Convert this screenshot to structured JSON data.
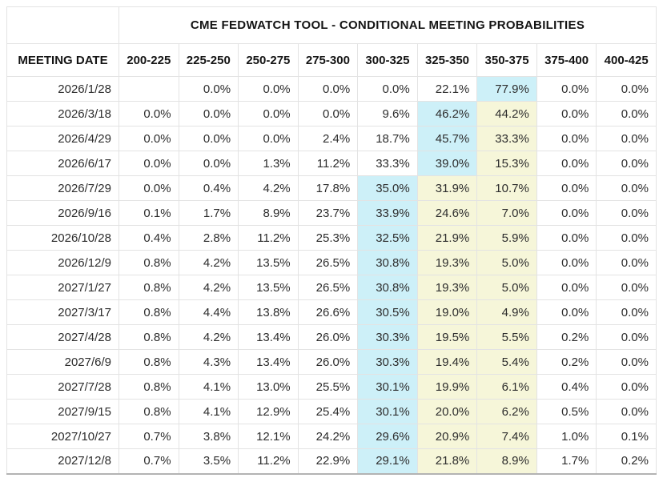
{
  "table": {
    "title": "CME FEDWATCH TOOL - CONDITIONAL MEETING PROBABILITIES",
    "headers": [
      "MEETING DATE",
      "200-225",
      "225-250",
      "250-275",
      "275-300",
      "300-325",
      "325-350",
      "350-375",
      "375-400",
      "400-425"
    ],
    "rows": [
      {
        "date": "2026/1/28",
        "values": [
          "",
          "0.0%",
          "0.0%",
          "0.0%",
          "0.0%",
          "22.1%",
          "77.9%",
          "0.0%",
          "0.0%"
        ],
        "styles": [
          "",
          "",
          "",
          "",
          "",
          "",
          "blue",
          "",
          ""
        ]
      },
      {
        "date": "2026/3/18",
        "values": [
          "0.0%",
          "0.0%",
          "0.0%",
          "0.0%",
          "9.6%",
          "46.2%",
          "44.2%",
          "0.0%",
          "0.0%"
        ],
        "styles": [
          "",
          "",
          "",
          "",
          "",
          "blue",
          "yellow",
          "",
          ""
        ]
      },
      {
        "date": "2026/4/29",
        "values": [
          "0.0%",
          "0.0%",
          "0.0%",
          "2.4%",
          "18.7%",
          "45.7%",
          "33.3%",
          "0.0%",
          "0.0%"
        ],
        "styles": [
          "",
          "",
          "",
          "",
          "",
          "blue",
          "yellow",
          "",
          ""
        ]
      },
      {
        "date": "2026/6/17",
        "values": [
          "0.0%",
          "0.0%",
          "1.3%",
          "11.2%",
          "33.3%",
          "39.0%",
          "15.3%",
          "0.0%",
          "0.0%"
        ],
        "styles": [
          "",
          "",
          "",
          "",
          "",
          "blue",
          "yellow",
          "",
          ""
        ]
      },
      {
        "date": "2026/7/29",
        "values": [
          "0.0%",
          "0.4%",
          "4.2%",
          "17.8%",
          "35.0%",
          "31.9%",
          "10.7%",
          "0.0%",
          "0.0%"
        ],
        "styles": [
          "",
          "",
          "",
          "",
          "blue",
          "yellow",
          "yellow",
          "",
          ""
        ]
      },
      {
        "date": "2026/9/16",
        "values": [
          "0.1%",
          "1.7%",
          "8.9%",
          "23.7%",
          "33.9%",
          "24.6%",
          "7.0%",
          "0.0%",
          "0.0%"
        ],
        "styles": [
          "",
          "",
          "",
          "",
          "blue",
          "yellow",
          "yellow",
          "",
          ""
        ]
      },
      {
        "date": "2026/10/28",
        "values": [
          "0.4%",
          "2.8%",
          "11.2%",
          "25.3%",
          "32.5%",
          "21.9%",
          "5.9%",
          "0.0%",
          "0.0%"
        ],
        "styles": [
          "",
          "",
          "",
          "",
          "blue",
          "yellow",
          "yellow",
          "",
          ""
        ]
      },
      {
        "date": "2026/12/9",
        "values": [
          "0.8%",
          "4.2%",
          "13.5%",
          "26.5%",
          "30.8%",
          "19.3%",
          "5.0%",
          "0.0%",
          "0.0%"
        ],
        "styles": [
          "",
          "",
          "",
          "",
          "blue",
          "yellow",
          "yellow",
          "",
          ""
        ]
      },
      {
        "date": "2027/1/27",
        "values": [
          "0.8%",
          "4.2%",
          "13.5%",
          "26.5%",
          "30.8%",
          "19.3%",
          "5.0%",
          "0.0%",
          "0.0%"
        ],
        "styles": [
          "",
          "",
          "",
          "",
          "blue",
          "yellow",
          "yellow",
          "",
          ""
        ]
      },
      {
        "date": "2027/3/17",
        "values": [
          "0.8%",
          "4.4%",
          "13.8%",
          "26.6%",
          "30.5%",
          "19.0%",
          "4.9%",
          "0.0%",
          "0.0%"
        ],
        "styles": [
          "",
          "",
          "",
          "",
          "blue",
          "yellow",
          "yellow",
          "",
          ""
        ]
      },
      {
        "date": "2027/4/28",
        "values": [
          "0.8%",
          "4.2%",
          "13.4%",
          "26.0%",
          "30.3%",
          "19.5%",
          "5.5%",
          "0.2%",
          "0.0%"
        ],
        "styles": [
          "",
          "",
          "",
          "",
          "blue",
          "yellow",
          "yellow",
          "",
          ""
        ]
      },
      {
        "date": "2027/6/9",
        "values": [
          "0.8%",
          "4.3%",
          "13.4%",
          "26.0%",
          "30.3%",
          "19.4%",
          "5.4%",
          "0.2%",
          "0.0%"
        ],
        "styles": [
          "",
          "",
          "",
          "",
          "blue",
          "yellow",
          "yellow",
          "",
          ""
        ]
      },
      {
        "date": "2027/7/28",
        "values": [
          "0.8%",
          "4.1%",
          "13.0%",
          "25.5%",
          "30.1%",
          "19.9%",
          "6.1%",
          "0.4%",
          "0.0%"
        ],
        "styles": [
          "",
          "",
          "",
          "",
          "blue",
          "yellow",
          "yellow",
          "",
          ""
        ]
      },
      {
        "date": "2027/9/15",
        "values": [
          "0.8%",
          "4.1%",
          "12.9%",
          "25.4%",
          "30.1%",
          "20.0%",
          "6.2%",
          "0.5%",
          "0.0%"
        ],
        "styles": [
          "",
          "",
          "",
          "",
          "blue",
          "yellow",
          "yellow",
          "",
          ""
        ]
      },
      {
        "date": "2027/10/27",
        "values": [
          "0.7%",
          "3.8%",
          "12.1%",
          "24.2%",
          "29.6%",
          "20.9%",
          "7.4%",
          "1.0%",
          "0.1%"
        ],
        "styles": [
          "",
          "",
          "",
          "",
          "blue",
          "yellow",
          "yellow",
          "",
          ""
        ]
      },
      {
        "date": "2027/12/8",
        "values": [
          "0.7%",
          "3.5%",
          "11.2%",
          "22.9%",
          "29.1%",
          "21.8%",
          "8.9%",
          "1.7%",
          "0.2%"
        ],
        "styles": [
          "",
          "",
          "",
          "",
          "blue",
          "yellow",
          "yellow",
          "",
          ""
        ]
      }
    ]
  },
  "colors": {
    "blue": "#cdf0f8",
    "yellow": "#f6f6d9",
    "grid": "#e3e3e3",
    "header_text": "#141414",
    "body_text": "#2d2d2d"
  },
  "chart_data": {
    "type": "table",
    "title": "CME FEDWATCH TOOL - CONDITIONAL MEETING PROBABILITIES",
    "row_label": "MEETING DATE",
    "columns": [
      "200-225",
      "225-250",
      "250-275",
      "275-300",
      "300-325",
      "325-350",
      "350-375",
      "375-400",
      "400-425"
    ],
    "meeting_dates": [
      "2026/1/28",
      "2026/3/18",
      "2026/4/29",
      "2026/6/17",
      "2026/7/29",
      "2026/9/16",
      "2026/10/28",
      "2026/12/9",
      "2027/1/27",
      "2027/3/17",
      "2027/4/28",
      "2027/6/9",
      "2027/7/28",
      "2027/9/15",
      "2027/10/27",
      "2027/12/8"
    ],
    "values_percent": [
      [
        null,
        0.0,
        0.0,
        0.0,
        0.0,
        22.1,
        77.9,
        0.0,
        0.0
      ],
      [
        0.0,
        0.0,
        0.0,
        0.0,
        9.6,
        46.2,
        44.2,
        0.0,
        0.0
      ],
      [
        0.0,
        0.0,
        0.0,
        2.4,
        18.7,
        45.7,
        33.3,
        0.0,
        0.0
      ],
      [
        0.0,
        0.0,
        1.3,
        11.2,
        33.3,
        39.0,
        15.3,
        0.0,
        0.0
      ],
      [
        0.0,
        0.4,
        4.2,
        17.8,
        35.0,
        31.9,
        10.7,
        0.0,
        0.0
      ],
      [
        0.1,
        1.7,
        8.9,
        23.7,
        33.9,
        24.6,
        7.0,
        0.0,
        0.0
      ],
      [
        0.4,
        2.8,
        11.2,
        25.3,
        32.5,
        21.9,
        5.9,
        0.0,
        0.0
      ],
      [
        0.8,
        4.2,
        13.5,
        26.5,
        30.8,
        19.3,
        5.0,
        0.0,
        0.0
      ],
      [
        0.8,
        4.2,
        13.5,
        26.5,
        30.8,
        19.3,
        5.0,
        0.0,
        0.0
      ],
      [
        0.8,
        4.4,
        13.8,
        26.6,
        30.5,
        19.0,
        4.9,
        0.0,
        0.0
      ],
      [
        0.8,
        4.2,
        13.4,
        26.0,
        30.3,
        19.5,
        5.5,
        0.2,
        0.0
      ],
      [
        0.8,
        4.3,
        13.4,
        26.0,
        30.3,
        19.4,
        5.4,
        0.2,
        0.0
      ],
      [
        0.8,
        4.1,
        13.0,
        25.5,
        30.1,
        19.9,
        6.1,
        0.4,
        0.0
      ],
      [
        0.8,
        4.1,
        12.9,
        25.4,
        30.1,
        20.0,
        6.2,
        0.5,
        0.0
      ],
      [
        0.7,
        3.8,
        12.1,
        24.2,
        29.6,
        20.9,
        7.4,
        1.0,
        0.1
      ],
      [
        0.7,
        3.5,
        11.2,
        22.9,
        29.1,
        21.8,
        8.9,
        1.7,
        0.2
      ]
    ],
    "highlight_blue_cells": "modal (highest-probability) target range per meeting",
    "highlight_yellow_cells": "ranges between modal range and current 350-375 range",
    "legend_position": "none",
    "grid": true
  }
}
